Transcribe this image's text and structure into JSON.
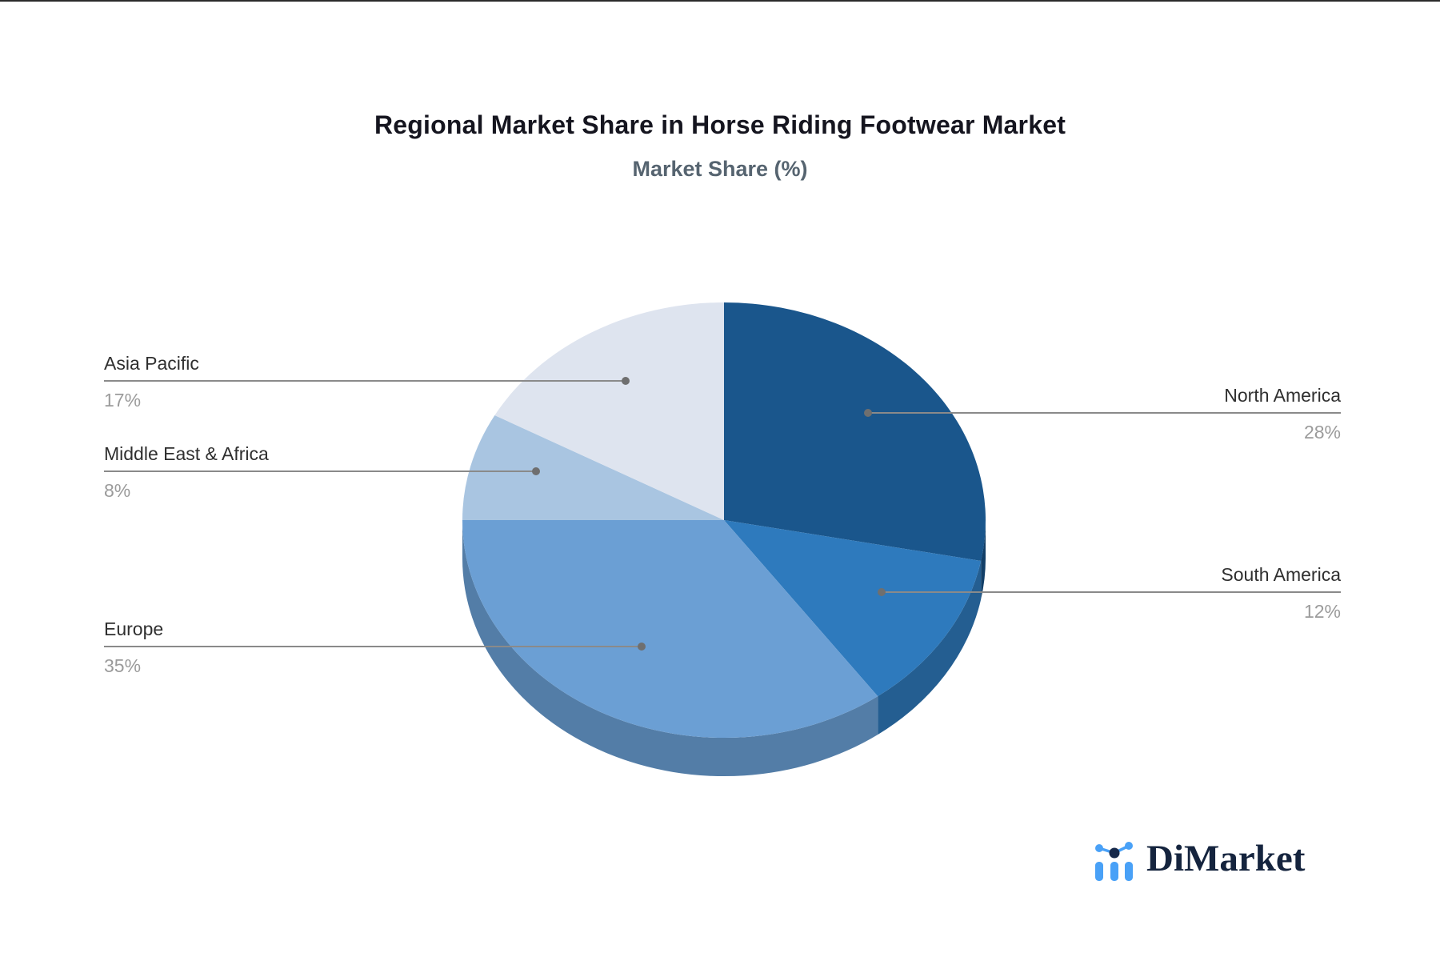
{
  "chart_data": {
    "type": "pie",
    "style": "3d",
    "title": "Regional Market Share in Horse Riding Footwear Market",
    "subtitle": "Market Share (%)",
    "unit": "%",
    "direction": "clockwise",
    "start_angle_deg": 0,
    "legend_position": "callout-labels",
    "callout_line_color": "#8a8a8a",
    "callout_dot_color": "#6f6f6f",
    "label_color": "#2f2f2f",
    "pct_color": "#9b9b9b",
    "slices": [
      {
        "label": "North America",
        "value": 28,
        "pct_label": "28%",
        "color": "#1a568c",
        "side_color": "#123f68"
      },
      {
        "label": "South America",
        "value": 12,
        "pct_label": "12%",
        "color": "#2e7abd",
        "side_color": "#245e91"
      },
      {
        "label": "Europe",
        "value": 35,
        "pct_label": "35%",
        "color": "#6b9fd4",
        "side_color": "#537da7"
      },
      {
        "label": "Middle East & Africa",
        "value": 8,
        "pct_label": "8%",
        "color": "#a9c5e1",
        "side_color": "#8aa6c4"
      },
      {
        "label": "Asia Pacific",
        "value": 17,
        "pct_label": "17%",
        "color": "#dee4ef",
        "side_color": "#bcc6d6"
      }
    ]
  },
  "branding": {
    "logo_text": "DiMarket",
    "logo_icon": "bar-line-chart-icon",
    "logo_text_color": "#15243e",
    "logo_accent_color": "#49a1f7",
    "logo_dark_dot_color": "#17294a"
  }
}
